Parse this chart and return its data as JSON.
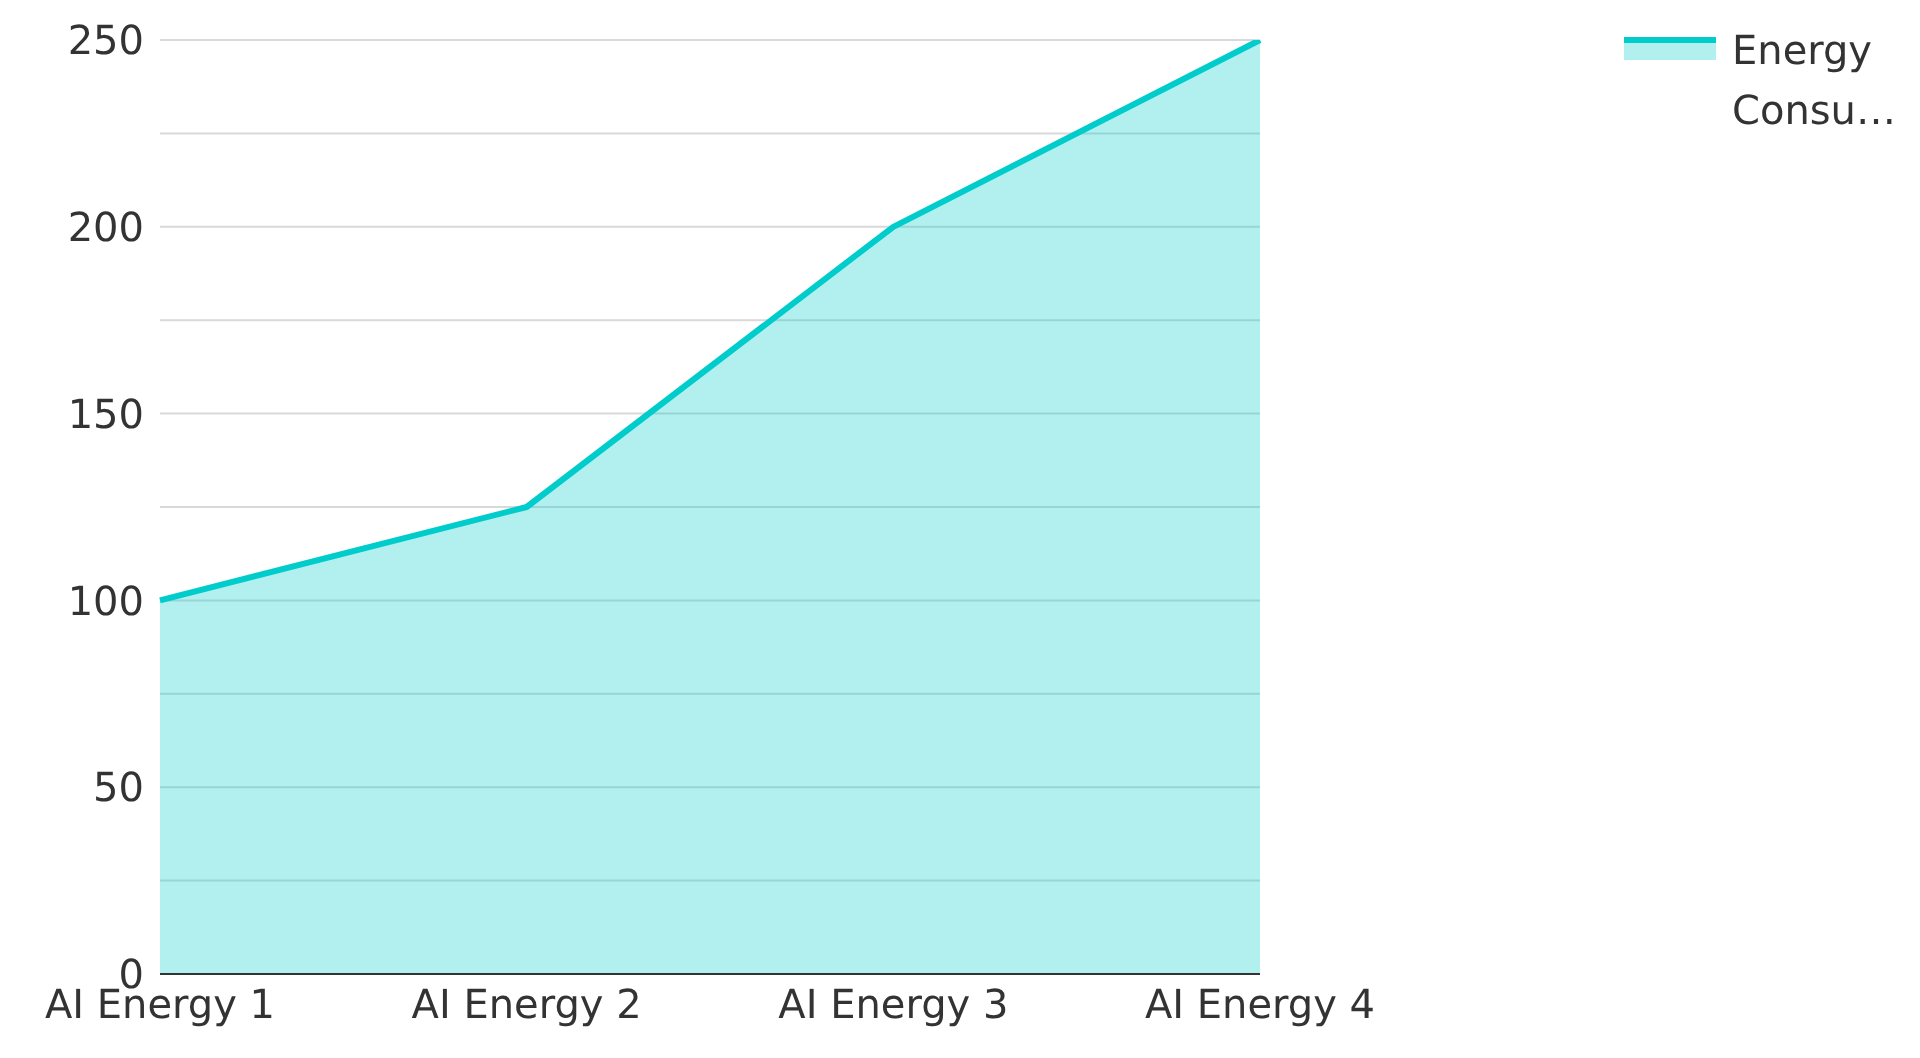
{
  "chart_data": {
    "type": "area",
    "categories": [
      "AI Energy 1",
      "AI Energy 2",
      "AI Energy 3",
      "AI Energy 4"
    ],
    "series": [
      {
        "name": "Energy Consu…",
        "color": "#00cccc",
        "values": [
          100,
          125,
          200,
          250
        ]
      }
    ],
    "ylim": [
      0,
      250
    ],
    "yticks": [
      0,
      {
        "value": 25,
        "label": null
      },
      50,
      {
        "value": 75,
        "label": null
      },
      100,
      {
        "value": 125,
        "label": null
      },
      150,
      {
        "value": 175,
        "label": null
      },
      200,
      {
        "value": 225,
        "label": null
      },
      250
    ],
    "grid": "y",
    "legend": "top right"
  }
}
